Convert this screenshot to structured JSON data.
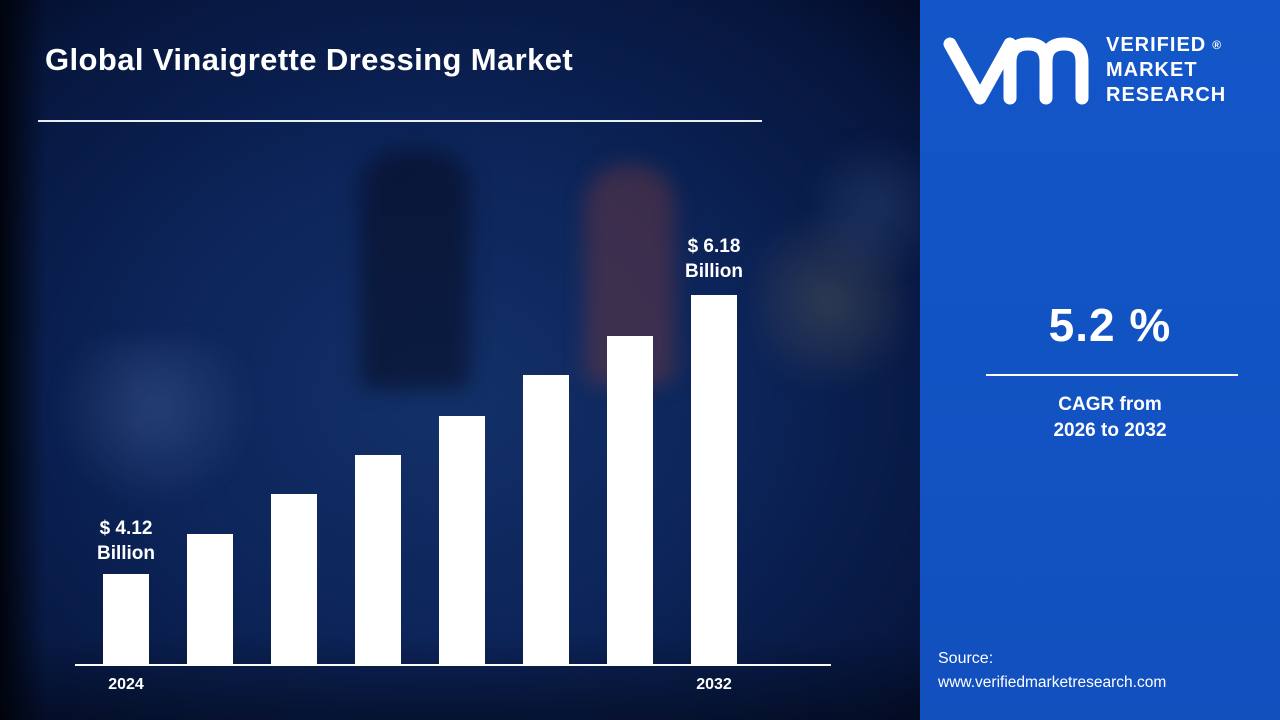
{
  "header": {
    "title": "Global Vinaigrette Dressing Market"
  },
  "chart_data": {
    "type": "bar",
    "title": "Global Vinaigrette Dressing Market",
    "bar_count": 8,
    "x_tick_labels": [
      "2024",
      "2032"
    ],
    "values": [
      4.12,
      4.41,
      4.71,
      5.0,
      5.29,
      5.59,
      5.88,
      6.18
    ],
    "unit": "USD Billion",
    "ylim": [
      3.45,
      6.6
    ],
    "grid": false,
    "bar_color": "#ffffff",
    "data_labels": {
      "first": {
        "line1": "$ 4.12",
        "line2": "Billion"
      },
      "last": {
        "line1": "$ 6.18",
        "line2": "Billion"
      }
    }
  },
  "logo": {
    "lines": [
      "VERIFIED",
      "MARKET",
      "RESEARCH"
    ],
    "registered": "®"
  },
  "stats": {
    "value": "5.2 %",
    "label_line1": "CAGR from",
    "label_line2": "2026 to 2032"
  },
  "source": {
    "label": "Source:",
    "url": "www.verifiedmarketresearch.com"
  },
  "colors": {
    "panel_blue": "#1356c9",
    "background_navy": "#0c2459",
    "bar": "#ffffff",
    "text": "#ffffff"
  }
}
